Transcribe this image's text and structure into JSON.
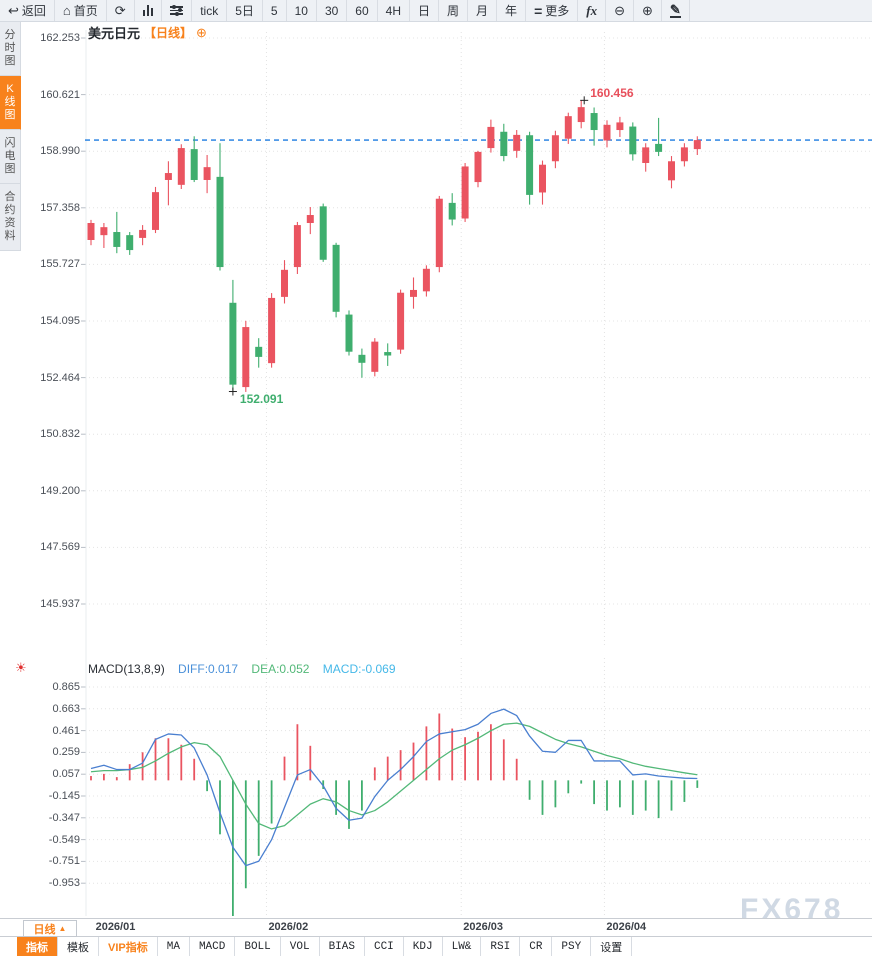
{
  "toolbar": {
    "items": [
      {
        "name": "back-button",
        "icon": "back-icon",
        "label": "返回"
      },
      {
        "name": "home-button",
        "icon": "home-icon",
        "label": "首页"
      },
      {
        "name": "refresh-button",
        "icon": "refresh-icon",
        "label": ""
      },
      {
        "name": "chart-style-button",
        "icon": "bar-chart-icon",
        "label": ""
      },
      {
        "name": "indicator-params-button",
        "icon": "sliders-icon",
        "label": ""
      },
      {
        "name": "interval-tick-button",
        "label": "tick"
      },
      {
        "name": "interval-5d-button",
        "label": "5日"
      },
      {
        "name": "interval-5-button",
        "label": "5"
      },
      {
        "name": "interval-10-button",
        "label": "10"
      },
      {
        "name": "interval-30-button",
        "label": "30"
      },
      {
        "name": "interval-60-button",
        "label": "60"
      },
      {
        "name": "interval-4h-button",
        "label": "4H"
      },
      {
        "name": "interval-day-button",
        "label": "日"
      },
      {
        "name": "interval-week-button",
        "label": "周"
      },
      {
        "name": "interval-month-button",
        "label": "月"
      },
      {
        "name": "interval-year-button",
        "label": "年"
      },
      {
        "name": "more-button",
        "icon": "menu-icon",
        "label": "更多"
      },
      {
        "name": "fx-indicator-button",
        "icon": "fx-icon",
        "label": ""
      },
      {
        "name": "zoom-out-button",
        "icon": "zoom-out-icon",
        "label": ""
      },
      {
        "name": "zoom-in-button",
        "icon": "zoom-in-icon",
        "label": ""
      },
      {
        "name": "draw-button",
        "icon": "pencil-icon",
        "label": ""
      }
    ]
  },
  "sidebar": {
    "items": [
      {
        "name": "sidebar-item-time-chart",
        "label": "分时图",
        "selected": false
      },
      {
        "name": "sidebar-item-kline-chart",
        "label": "K线图",
        "selected": true
      },
      {
        "name": "sidebar-item-lightning-chart",
        "label": "闪电图",
        "selected": false
      },
      {
        "name": "sidebar-item-contract-info",
        "label": "合约资料",
        "selected": false
      }
    ]
  },
  "chart": {
    "title": "美元日元",
    "period_tag": "【日线】",
    "price_axis_labels": [
      "162.253",
      "160.621",
      "158.990",
      "157.358",
      "155.727",
      "154.095",
      "152.464",
      "150.832",
      "149.200",
      "147.569",
      "145.937"
    ],
    "high_annotation": "160.456",
    "low_annotation": "152.091"
  },
  "macd_panel": {
    "header": "MACD(13,8,9)",
    "diff_label": "DIFF:0.017",
    "dea_label": "DEA:0.052",
    "macd_label": "MACD:-0.069",
    "axis_labels": [
      "0.865",
      "0.663",
      "0.461",
      "0.259",
      "0.057",
      "-0.145",
      "-0.347",
      "-0.549",
      "-0.751",
      "-0.953"
    ]
  },
  "xaxis": {
    "period_label": "日线",
    "period_arrow": "▲",
    "dates": [
      {
        "label": "2026/01",
        "index": 0.2
      },
      {
        "label": "2026/02",
        "index": 13.6
      },
      {
        "label": "2026/03",
        "index": 28.7
      },
      {
        "label": "2026/04",
        "index": 39.8
      }
    ]
  },
  "bottom_bar": {
    "items": [
      {
        "name": "indicators-tab",
        "label": "指标",
        "style": "active",
        "cjk": true
      },
      {
        "name": "templates-tab",
        "label": "模板",
        "cjk": true
      },
      {
        "name": "vip-indicators-tab",
        "label": "VIP指标",
        "style": "vip",
        "cjk": true
      },
      {
        "name": "indicator-ma",
        "label": "MA"
      },
      {
        "name": "indicator-macd",
        "label": "MACD"
      },
      {
        "name": "indicator-boll",
        "label": "BOLL"
      },
      {
        "name": "indicator-vol",
        "label": "VOL"
      },
      {
        "name": "indicator-bias",
        "label": "BIAS"
      },
      {
        "name": "indicator-cci",
        "label": "CCI"
      },
      {
        "name": "indicator-kdj",
        "label": "KDJ"
      },
      {
        "name": "indicator-lw",
        "label": "LW&"
      },
      {
        "name": "indicator-rsi",
        "label": "RSI"
      },
      {
        "name": "indicator-cr",
        "label": "CR"
      },
      {
        "name": "indicator-psy",
        "label": "PSY"
      },
      {
        "name": "settings-button",
        "label": "设置",
        "cjk": true
      }
    ]
  },
  "watermark": "FX678",
  "chart_data": {
    "type": "candlestick+macd",
    "symbol": "美元日元",
    "interval": "日线",
    "price_ticks": [
      162.253,
      160.621,
      158.99,
      157.358,
      155.727,
      154.095,
      152.464,
      150.832,
      149.2,
      147.569,
      145.937
    ],
    "macd_ticks": [
      0.865,
      0.663,
      0.461,
      0.259,
      0.057,
      -0.145,
      -0.347,
      -0.549,
      -0.751,
      -0.953
    ],
    "last_price_line": 159.31,
    "up_color": "#ea5460",
    "down_color": "#3fae6e",
    "dashed_line_color": "#1a7ae0",
    "diff_color": "#4a7fd0",
    "dea_color": "#52b878",
    "x_dates": [
      "2026/01",
      "2026/02",
      "2026/03",
      "2026/04"
    ],
    "high_point": {
      "index": 38,
      "price": 160.456
    },
    "low_point": {
      "index": 11,
      "price": 152.091
    },
    "candles": [
      [
        156.43,
        157.01,
        156.28,
        156.92
      ],
      [
        156.57,
        156.92,
        156.2,
        156.8
      ],
      [
        156.66,
        157.24,
        156.05,
        156.23
      ],
      [
        156.57,
        156.66,
        156.0,
        156.14
      ],
      [
        156.49,
        156.86,
        156.28,
        156.72
      ],
      [
        156.72,
        157.96,
        156.63,
        157.81
      ],
      [
        158.16,
        158.7,
        157.43,
        158.36
      ],
      [
        158.02,
        159.19,
        157.9,
        159.08
      ],
      [
        159.05,
        159.42,
        158.1,
        158.16
      ],
      [
        158.16,
        158.88,
        157.78,
        158.53
      ],
      [
        158.25,
        159.22,
        155.55,
        155.65
      ],
      [
        154.62,
        155.28,
        152.091,
        152.26
      ],
      [
        152.19,
        154.1,
        152.05,
        153.92
      ],
      [
        153.35,
        153.6,
        152.75,
        153.06
      ],
      [
        152.88,
        154.9,
        152.75,
        154.76
      ],
      [
        154.79,
        155.85,
        154.6,
        155.57
      ],
      [
        155.65,
        156.95,
        155.45,
        156.86
      ],
      [
        156.92,
        157.38,
        156.6,
        157.15
      ],
      [
        157.4,
        157.48,
        155.8,
        155.86
      ],
      [
        156.29,
        156.35,
        154.2,
        154.36
      ],
      [
        154.28,
        154.4,
        153.1,
        153.21
      ],
      [
        153.12,
        153.3,
        152.46,
        152.89
      ],
      [
        152.63,
        153.6,
        152.5,
        153.5
      ],
      [
        153.2,
        153.45,
        152.8,
        153.1
      ],
      [
        153.27,
        155.0,
        153.15,
        154.91
      ],
      [
        154.79,
        155.35,
        154.45,
        154.99
      ],
      [
        154.95,
        155.7,
        154.8,
        155.6
      ],
      [
        155.65,
        157.7,
        155.5,
        157.62
      ],
      [
        157.5,
        157.78,
        156.85,
        157.02
      ],
      [
        157.05,
        158.65,
        156.95,
        158.55
      ],
      [
        158.1,
        159.0,
        157.95,
        158.97
      ],
      [
        159.08,
        159.9,
        158.95,
        159.69
      ],
      [
        159.55,
        159.78,
        158.7,
        158.85
      ],
      [
        159.0,
        159.6,
        158.8,
        159.46
      ],
      [
        159.45,
        159.55,
        157.45,
        157.73
      ],
      [
        157.8,
        158.72,
        157.45,
        158.6
      ],
      [
        158.7,
        159.58,
        158.5,
        159.45
      ],
      [
        159.35,
        160.1,
        159.2,
        160.0
      ],
      [
        159.83,
        160.456,
        159.65,
        160.26
      ],
      [
        160.09,
        160.25,
        159.15,
        159.6
      ],
      [
        159.3,
        159.88,
        159.1,
        159.75
      ],
      [
        159.6,
        159.98,
        159.4,
        159.82
      ],
      [
        159.7,
        159.82,
        158.72,
        158.9
      ],
      [
        158.65,
        159.22,
        158.4,
        159.1
      ],
      [
        159.2,
        159.95,
        158.85,
        158.97
      ],
      [
        158.15,
        158.85,
        157.92,
        158.7
      ],
      [
        158.7,
        159.22,
        158.55,
        159.1
      ],
      [
        159.05,
        159.42,
        158.88,
        159.31
      ]
    ],
    "macd": {
      "params": [
        13,
        8,
        9
      ],
      "diff_last": 0.017,
      "dea_last": 0.052,
      "macd_last": -0.069,
      "diff": [
        0.11,
        0.14,
        0.1,
        0.1,
        0.16,
        0.38,
        0.43,
        0.42,
        0.3,
        0.05,
        -0.3,
        -0.62,
        -0.79,
        -0.75,
        -0.55,
        -0.25,
        0.05,
        0.1,
        -0.05,
        -0.26,
        -0.37,
        -0.35,
        -0.15,
        0.0,
        0.1,
        0.22,
        0.36,
        0.43,
        0.45,
        0.47,
        0.52,
        0.62,
        0.66,
        0.6,
        0.41,
        0.27,
        0.26,
        0.37,
        0.37,
        0.18,
        0.18,
        0.18,
        0.05,
        0.06,
        0.04,
        0.03,
        0.02,
        0.017
      ],
      "dea": [
        0.08,
        0.09,
        0.09,
        0.1,
        0.12,
        0.18,
        0.25,
        0.31,
        0.35,
        0.33,
        0.22,
        0.0,
        -0.22,
        -0.4,
        -0.45,
        -0.42,
        -0.32,
        -0.22,
        -0.17,
        -0.2,
        -0.28,
        -0.32,
        -0.28,
        -0.2,
        -0.1,
        0.0,
        0.1,
        0.2,
        0.28,
        0.33,
        0.39,
        0.46,
        0.52,
        0.53,
        0.5,
        0.44,
        0.38,
        0.34,
        0.31,
        0.27,
        0.23,
        0.2,
        0.16,
        0.13,
        0.11,
        0.09,
        0.07,
        0.052
      ],
      "hist": [
        0.04,
        0.06,
        0.03,
        0.15,
        0.26,
        0.39,
        0.39,
        0.33,
        0.2,
        -0.1,
        -0.5,
        -1.26,
        -1.0,
        -0.7,
        -0.4,
        0.22,
        0.52,
        0.32,
        -0.08,
        -0.32,
        -0.45,
        -0.28,
        0.12,
        0.22,
        0.28,
        0.35,
        0.5,
        0.62,
        0.48,
        0.4,
        0.45,
        0.52,
        0.38,
        0.2,
        -0.18,
        -0.32,
        -0.25,
        -0.12,
        -0.03,
        -0.22,
        -0.28,
        -0.25,
        -0.32,
        -0.28,
        -0.35,
        -0.28,
        -0.2,
        -0.07
      ]
    }
  }
}
